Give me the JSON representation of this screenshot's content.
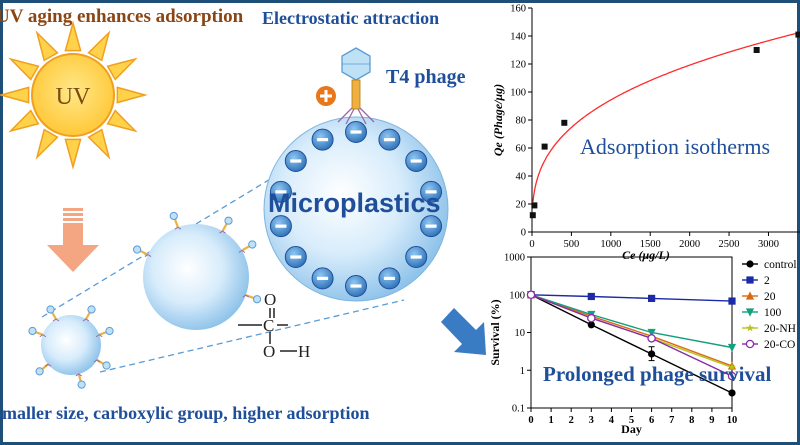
{
  "labels": {
    "uv_enhances": "UV aging enhances adsorption",
    "uv": "UV",
    "electrostatic": "Electrostatic attraction",
    "t4_phage": "T4 phage",
    "microplastics": "Microplastics",
    "size_group": "Smaller size, carboxylic group, higher adsorption",
    "carboxyl_c": "C",
    "carboxyl_o_top": "O",
    "carboxyl_o_bottom": "O",
    "carboxyl_h": "H",
    "adsorption_isotherms": "Adsorption isotherms",
    "prolonged_survival": "Prolonged phage survival"
  },
  "colors": {
    "frame": "#1e4f79",
    "title_blue": "#1f4e9a",
    "title_brown": "#8b4513",
    "sun_yellow": "#ffd24a",
    "sun_orange": "#f0a020",
    "arrow_orange": "#f4a582",
    "sphere_blue": "#8fc3ea",
    "charge_blue": "#2b6fb6",
    "plus_orange": "#e8771c",
    "fit_red": "#ff2a2a"
  },
  "chart_data": [
    {
      "type": "scatter",
      "title": "",
      "xlabel": "Ce (μg/L)",
      "ylabel": "Qe (Phage/μg)",
      "xlim": [
        0,
        3400
      ],
      "ylim": [
        0,
        160
      ],
      "xticks": [
        "0",
        "500",
        "1000",
        "1500",
        "2000",
        "2500",
        "3000"
      ],
      "yticks": [
        "0",
        "20",
        "40",
        "60",
        "80",
        "100",
        "120",
        "140",
        "160"
      ],
      "grid": false,
      "points": [
        {
          "x": 10,
          "y": 12
        },
        {
          "x": 30,
          "y": 19
        },
        {
          "x": 160,
          "y": 61
        },
        {
          "x": 410,
          "y": 78
        },
        {
          "x": 2850,
          "y": 130
        },
        {
          "x": 3380,
          "y": 141
        }
      ],
      "fit": {
        "color": "#ff2a2a",
        "style": "line"
      }
    },
    {
      "type": "line",
      "title": "",
      "xlabel": "Day",
      "ylabel": "Survival (%)",
      "xlim": [
        0,
        10
      ],
      "ylim": [
        0.1,
        1000
      ],
      "yscale": "log",
      "xticks": [
        "0",
        "1",
        "2",
        "3",
        "4",
        "5",
        "6",
        "7",
        "8",
        "9",
        "10"
      ],
      "yticks": [
        "0.1",
        "1",
        "10",
        "100",
        "1000"
      ],
      "legend_position": "right",
      "x": [
        0,
        3,
        6,
        10
      ],
      "series": [
        {
          "name": "control",
          "color": "#000000",
          "marker": "circle",
          "values": [
            100,
            16,
            2.7,
            0.25
          ]
        },
        {
          "name": "2",
          "color": "#1a2aa8",
          "marker": "square",
          "values": [
            100,
            90,
            80,
            68
          ]
        },
        {
          "name": "20",
          "color": "#d96a14",
          "marker": "triangle-up",
          "values": [
            100,
            27,
            8,
            1.3
          ]
        },
        {
          "name": "100",
          "color": "#13a07d",
          "marker": "triangle-down",
          "values": [
            100,
            30,
            10,
            4
          ]
        },
        {
          "name": "20-NH",
          "color": "#b8c21c",
          "marker": "star",
          "values": [
            100,
            24,
            7,
            1.2
          ]
        },
        {
          "name": "20-CO",
          "color": "#8a2aa8",
          "marker": "circle-open",
          "values": [
            100,
            24,
            7,
            0.7
          ]
        }
      ]
    }
  ]
}
